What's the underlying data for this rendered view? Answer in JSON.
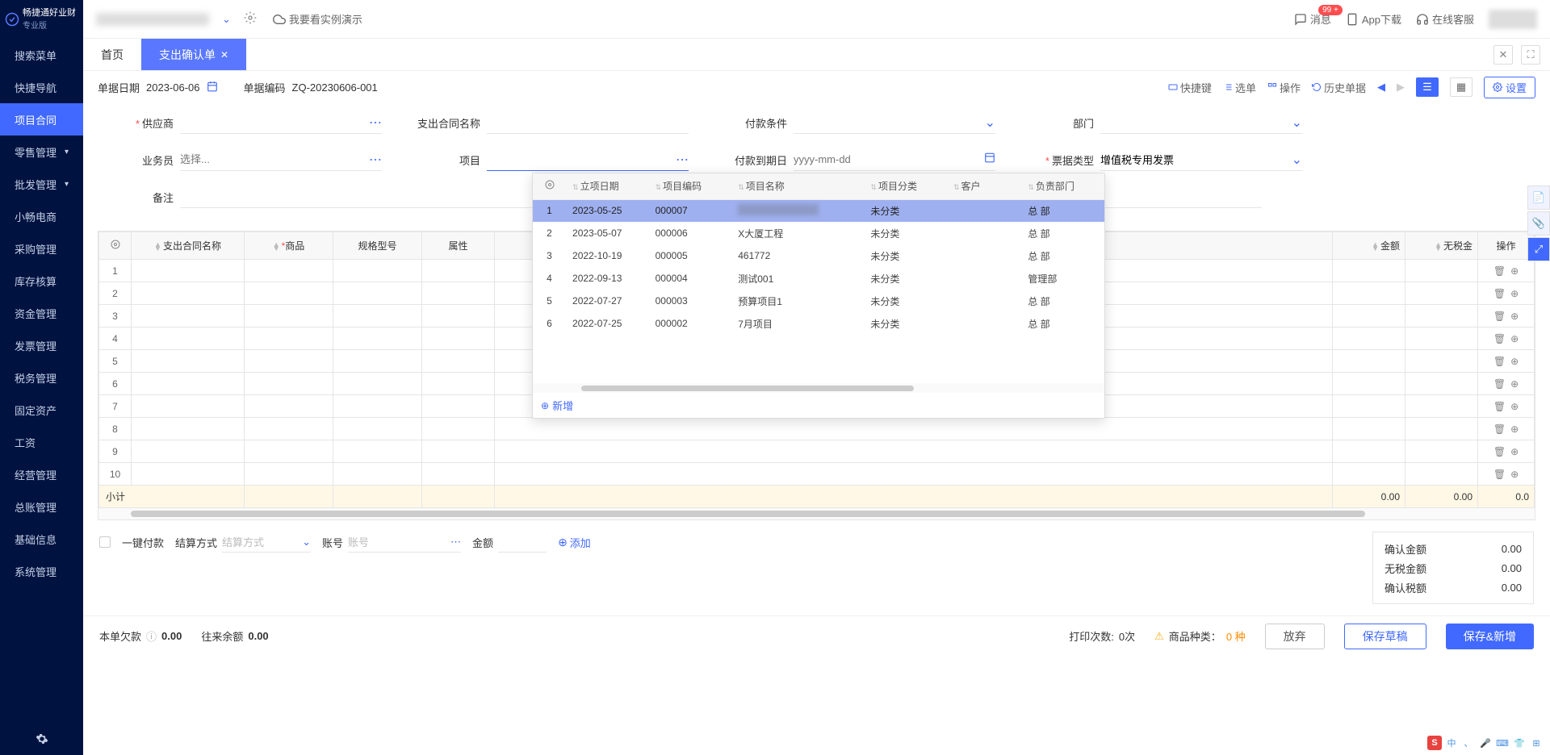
{
  "logo": {
    "brand": "畅捷通好业财",
    "edition": "专业版"
  },
  "sidebar": {
    "items": [
      {
        "label": "搜索菜单"
      },
      {
        "label": "快捷导航"
      },
      {
        "label": "项目合同",
        "active": true
      },
      {
        "label": "零售管理",
        "expandable": true
      },
      {
        "label": "批发管理",
        "expandable": true
      },
      {
        "label": "小畅电商"
      },
      {
        "label": "采购管理"
      },
      {
        "label": "库存核算"
      },
      {
        "label": "资金管理"
      },
      {
        "label": "发票管理"
      },
      {
        "label": "税务管理"
      },
      {
        "label": "固定资产"
      },
      {
        "label": "工资"
      },
      {
        "label": "经营管理"
      },
      {
        "label": "总账管理"
      },
      {
        "label": "基础信息"
      },
      {
        "label": "系统管理"
      }
    ]
  },
  "topbar": {
    "demo": "我要看实例演示",
    "message": "消息",
    "badge": "99 +",
    "app": "App下载",
    "service": "在线客服"
  },
  "tabs": {
    "home": "首页",
    "active": "支出确认单"
  },
  "infobar": {
    "dateLabel": "单据日期",
    "date": "2023-06-06",
    "codeLabel": "单据编码",
    "code": "ZQ-20230606-001",
    "shortcut": "快捷键",
    "pick": "选单",
    "operate": "操作",
    "history": "历史单据",
    "setting": "设置"
  },
  "form": {
    "supplier": "供应商",
    "contractName": "支出合同名称",
    "payTerms": "付款条件",
    "dept": "部门",
    "salesman": "业务员",
    "salesmanPh": "选择...",
    "project": "项目",
    "dueDate": "付款到期日",
    "dueDatePh": "yyyy-mm-dd",
    "invoiceType": "票据类型",
    "invoiceTypeVal": "增值税专用发票",
    "remark": "备注"
  },
  "table": {
    "cols": [
      "支出合同名称",
      "商品",
      "规格型号",
      "属性",
      "金额",
      "无税金",
      "操作"
    ],
    "subtotal": "小计",
    "totals": {
      "amount": "0.00",
      "notax": "0.00",
      "last": "0.0"
    }
  },
  "popup": {
    "cols": [
      "立项日期",
      "项目编码",
      "项目名称",
      "项目分类",
      "客户",
      "负责部门"
    ],
    "rows": [
      {
        "idx": 1,
        "date": "2023-05-25",
        "code": "000007",
        "name": "[blur]",
        "cat": "未分类",
        "cust": "",
        "dept": "总 部",
        "sel": true
      },
      {
        "idx": 2,
        "date": "2023-05-07",
        "code": "000006",
        "name": "X大厦工程",
        "cat": "未分类",
        "cust": "",
        "dept": "总 部"
      },
      {
        "idx": 3,
        "date": "2022-10-19",
        "code": "000005",
        "name": "461772",
        "cat": "未分类",
        "cust": "",
        "dept": "总 部"
      },
      {
        "idx": 4,
        "date": "2022-09-13",
        "code": "000004",
        "name": "测试001",
        "cat": "未分类",
        "cust": "",
        "dept": "管理部"
      },
      {
        "idx": 5,
        "date": "2022-07-27",
        "code": "000003",
        "name": "预算项目1",
        "cat": "未分类",
        "cust": "",
        "dept": "总 部"
      },
      {
        "idx": 6,
        "date": "2022-07-25",
        "code": "000002",
        "name": "7月项目",
        "cat": "未分类",
        "cust": "",
        "dept": "总 部"
      }
    ],
    "add": "新增"
  },
  "payment": {
    "oneKey": "一键付款",
    "methodLabel": "结算方式",
    "methodPh": "结算方式",
    "accountLabel": "账号",
    "accountPh": "账号",
    "amount": "金额",
    "add": "添加"
  },
  "totals": {
    "confirmAmtL": "确认金额",
    "confirmAmt": "0.00",
    "notaxAmtL": "无税金额",
    "notaxAmt": "0.00",
    "confirmTaxL": "确认税额",
    "confirmTax": "0.00"
  },
  "footer": {
    "oweL": "本单欠款",
    "owe": "0.00",
    "balanceL": "往来余额",
    "balance": "0.00",
    "printL": "打印次数:",
    "print": "0次",
    "goodsL": "商品种类：",
    "goods": "0 种",
    "discard": "放弃",
    "draft": "保存草稿",
    "save": "保存&新增"
  },
  "ime": {
    "s": "S",
    "zh": "中"
  }
}
